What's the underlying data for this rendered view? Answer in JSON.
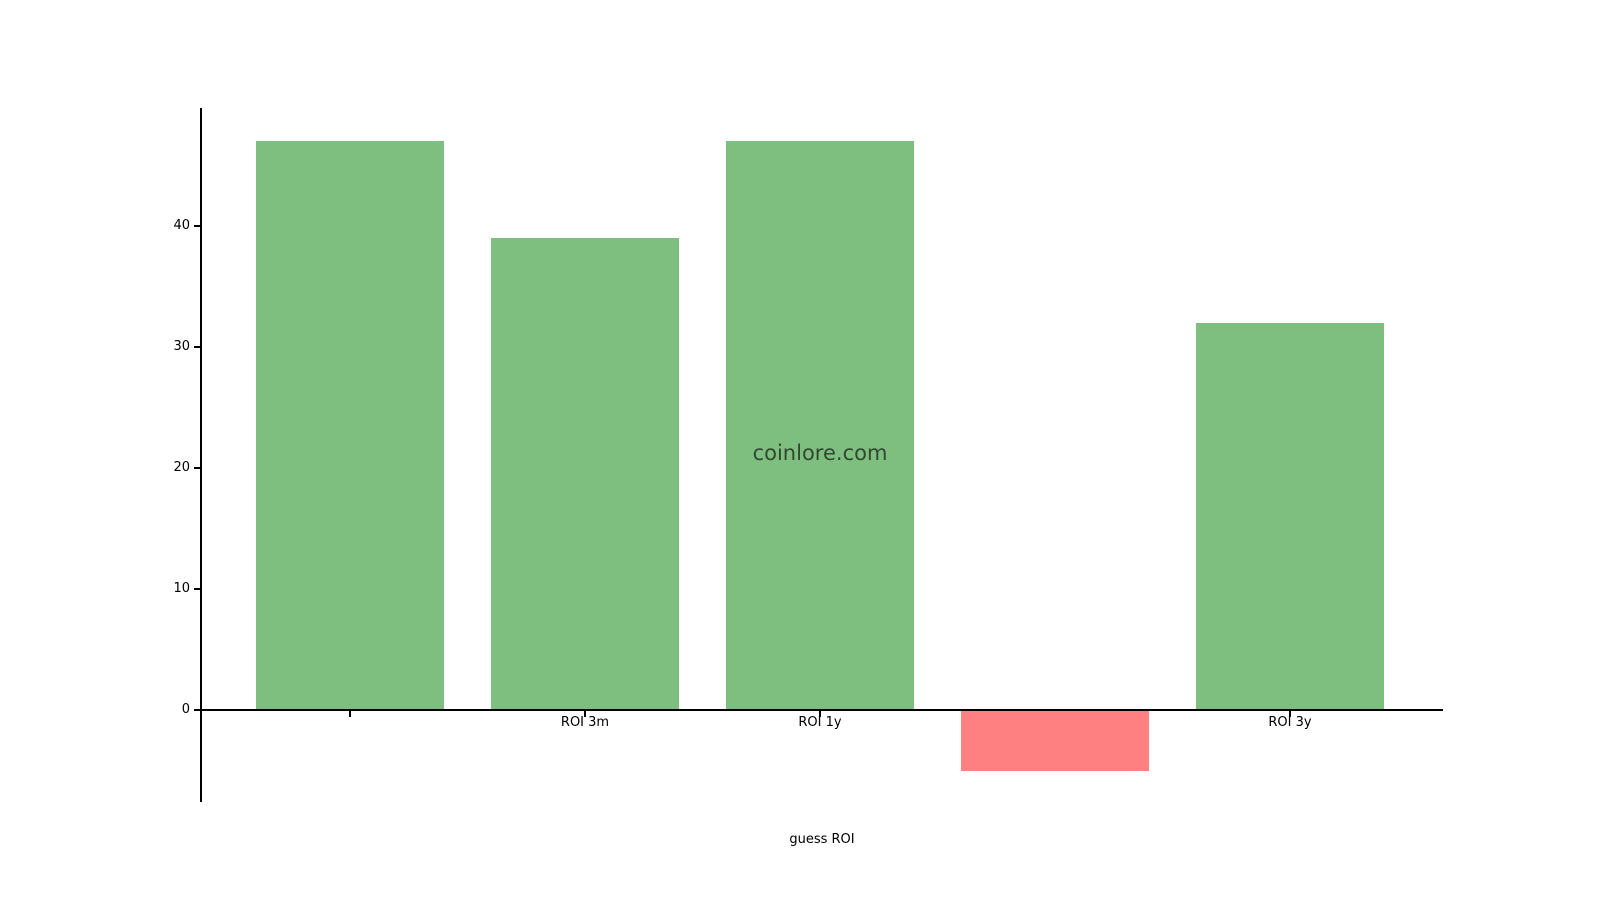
{
  "watermark": "coinlore.com",
  "chart_data": {
    "type": "bar",
    "title": "",
    "xlabel": "guess ROI",
    "ylabel": "",
    "categories": [
      "",
      "ROI 3m",
      "ROI 1y",
      "",
      "ROI 3y"
    ],
    "values": [
      47,
      39,
      47,
      -5,
      32
    ],
    "bar_colors": [
      "#7ebe7e",
      "#7ebe7e",
      "#7ebe7e",
      "#ff8080",
      "#7ebe7e"
    ],
    "positive_color": "#7ebe7e",
    "negative_color": "#ff8080",
    "yticks": [
      0,
      10,
      20,
      30,
      40
    ],
    "ylim": [
      -7.6,
      49.9
    ],
    "grid": false,
    "legend_position": "none",
    "axis_color": "#000000",
    "tick_text_color": "#000000",
    "watermark_color": "rgba(0,0,0,0.62)"
  }
}
